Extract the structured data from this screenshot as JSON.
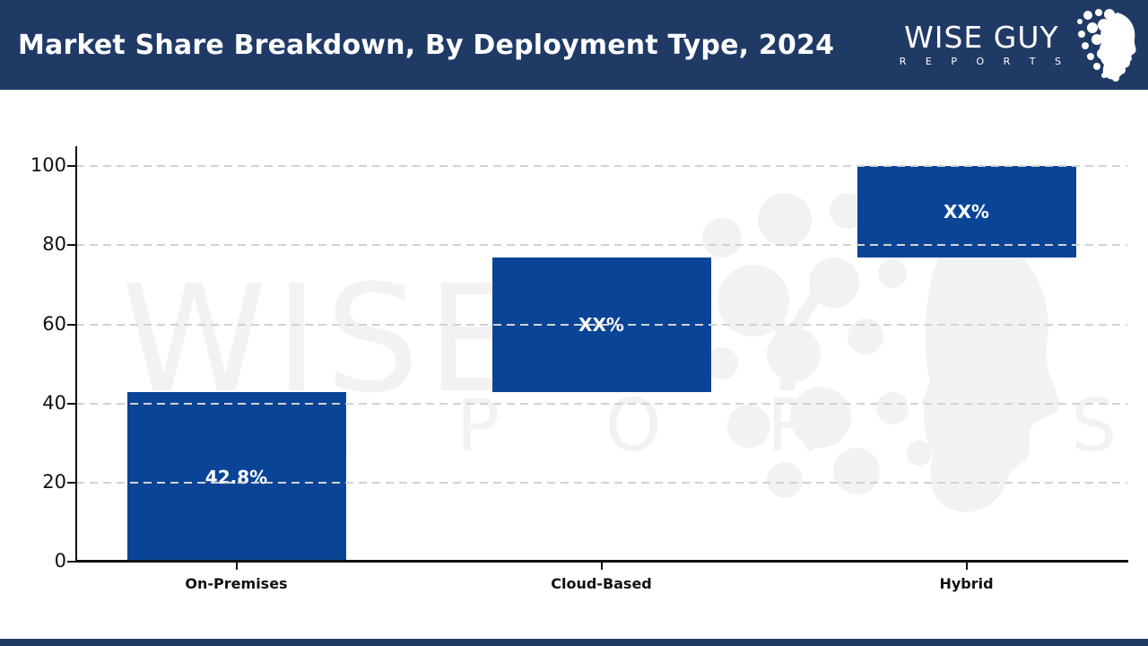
{
  "header": {
    "title": "Market Share Breakdown, By Deployment Type, 2024",
    "logo": {
      "line1": "WISE GUY",
      "line2": "R E P O R T S"
    }
  },
  "watermark": {
    "line1": "WISE G",
    "line1b": "Y",
    "line2": "R E P O R T S"
  },
  "chart_data": {
    "type": "bar",
    "subtype": "stacked-waterfall",
    "title": "Market Share Breakdown, By Deployment Type, 2024",
    "categories": [
      "On-Premises",
      "Cloud-Based",
      "Hybrid"
    ],
    "segments": [
      {
        "category": "On-Premises",
        "start": 0,
        "end": 42.8,
        "label": "42.8%"
      },
      {
        "category": "Cloud-Based",
        "start": 42.8,
        "end": 77,
        "label": "XX%"
      },
      {
        "category": "Hybrid",
        "start": 77,
        "end": 100,
        "label": "XX%"
      }
    ],
    "xlabel": "",
    "ylabel": "",
    "ylim": [
      0,
      100
    ],
    "yticks": [
      0,
      20,
      40,
      60,
      80,
      100
    ],
    "grid": "horizontal-dashed-above-bars",
    "legend": "none"
  },
  "colors": {
    "header_bg": "#203a66",
    "footer_bg": "#203a66",
    "bar": "#0a4496",
    "bar_label": "#ffffff",
    "grid": "#d2d2d2",
    "axis": "#111111",
    "watermark": "#f2f2f3"
  }
}
